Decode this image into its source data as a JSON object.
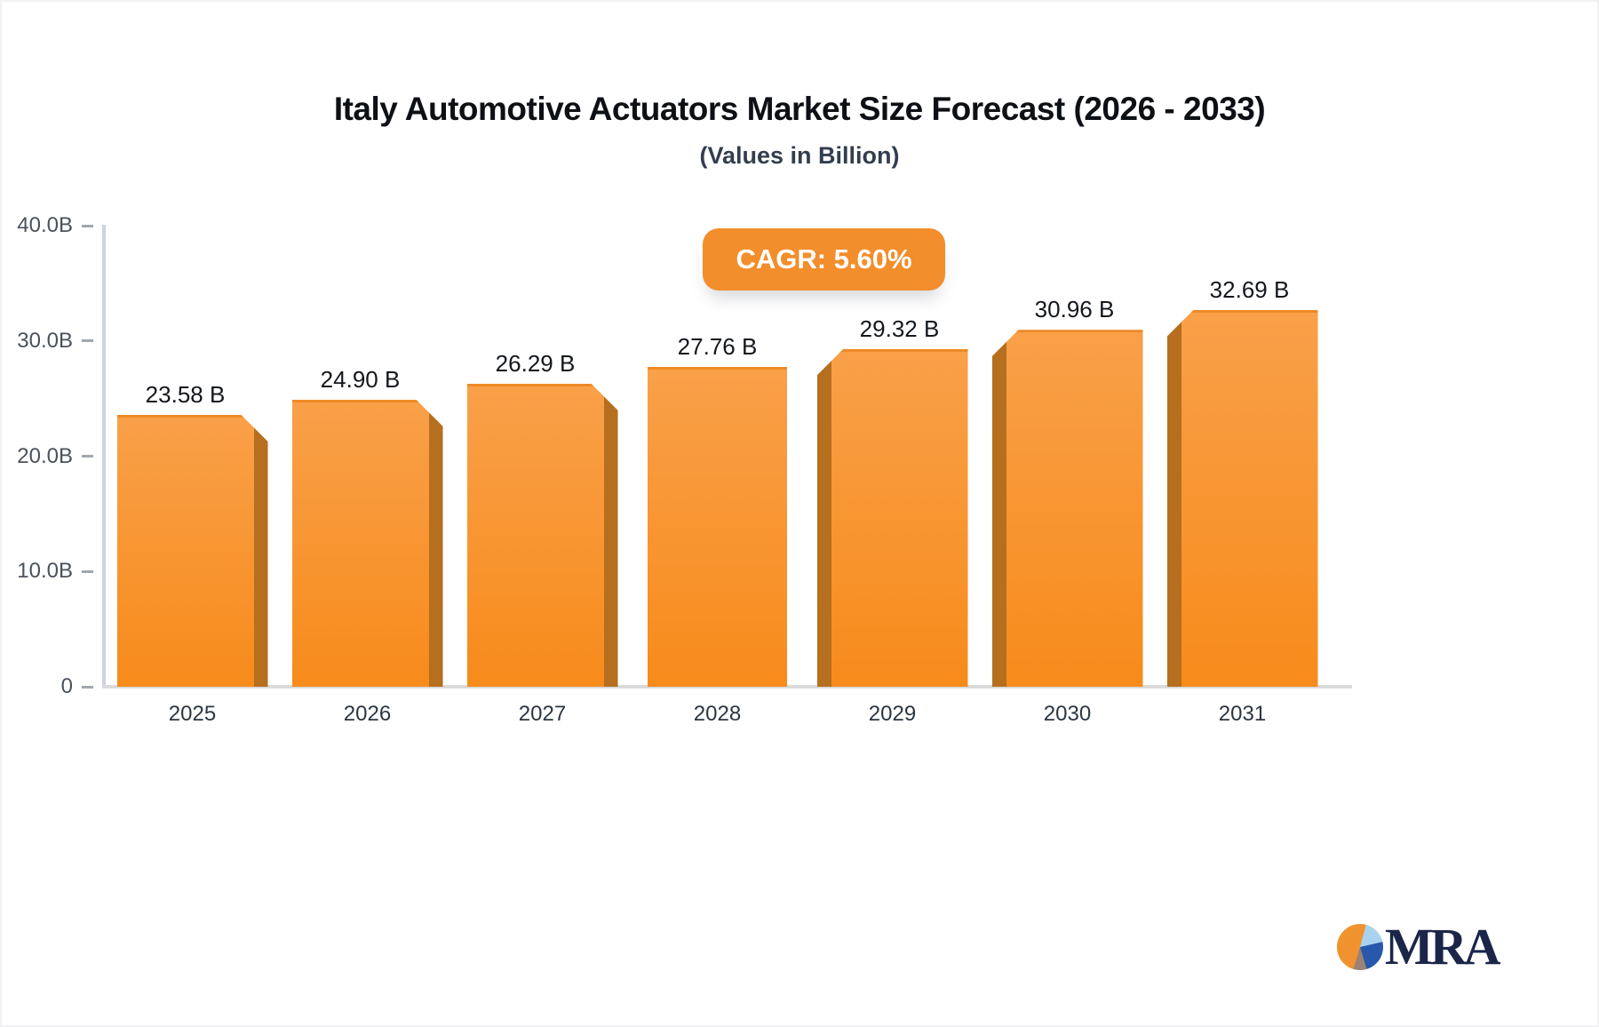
{
  "header": {
    "title": "Italy Automotive Actuators Market Size Forecast (2026 - 2033)",
    "subtitle": "(Values in Billion)",
    "cagr_badge": "CAGR: 5.60%"
  },
  "chart_data": {
    "type": "bar",
    "categories": [
      "2025",
      "2026",
      "2027",
      "2028",
      "2029",
      "2030",
      "2031"
    ],
    "values": [
      23.58,
      24.9,
      26.29,
      27.76,
      29.32,
      30.96,
      32.69
    ],
    "value_labels": [
      "23.58 B",
      "24.90 B",
      "26.29 B",
      "27.76 B",
      "29.32 B",
      "30.96 B",
      "32.69 B"
    ],
    "title": "Italy Automotive Actuators Market Size Forecast (2026 - 2033)",
    "subtitle": "(Values in Billion)",
    "xlabel": "",
    "ylabel": "",
    "ylim": [
      0,
      40
    ],
    "ytick_labels": [
      "40.0B",
      "30.0B",
      "20.0B",
      "10.0B",
      "0"
    ],
    "ytick_values": [
      40,
      30,
      20,
      10,
      0
    ],
    "grid": false,
    "legend": false,
    "bar_style": "3d-perspective"
  },
  "colors": {
    "title_color": "#0d1014",
    "subtitle_color": "#333e4e",
    "badge_bg": "#f28e2b",
    "bar_face_top": "#f9a049",
    "bar_face_bottom": "#f78b1b",
    "bar_top_edge": "#ed8a26",
    "bar_side": "#b56f1e",
    "axis_line": "#cfd4db",
    "baseline": "#dadada",
    "tick_color": "#a2a8b0",
    "ytick_color": "#4b525c",
    "xtick_color": "#2c3642",
    "value_color": "#14181d",
    "logo_navy": "#1a2548",
    "pie_orange": "#f0932f",
    "pie_lightblue": "#a9d2ee",
    "pie_darkblue": "#2858ab",
    "pie_gray": "#9a8374"
  },
  "logo": {
    "text": "MRA",
    "icon": "pie-chart-icon"
  }
}
